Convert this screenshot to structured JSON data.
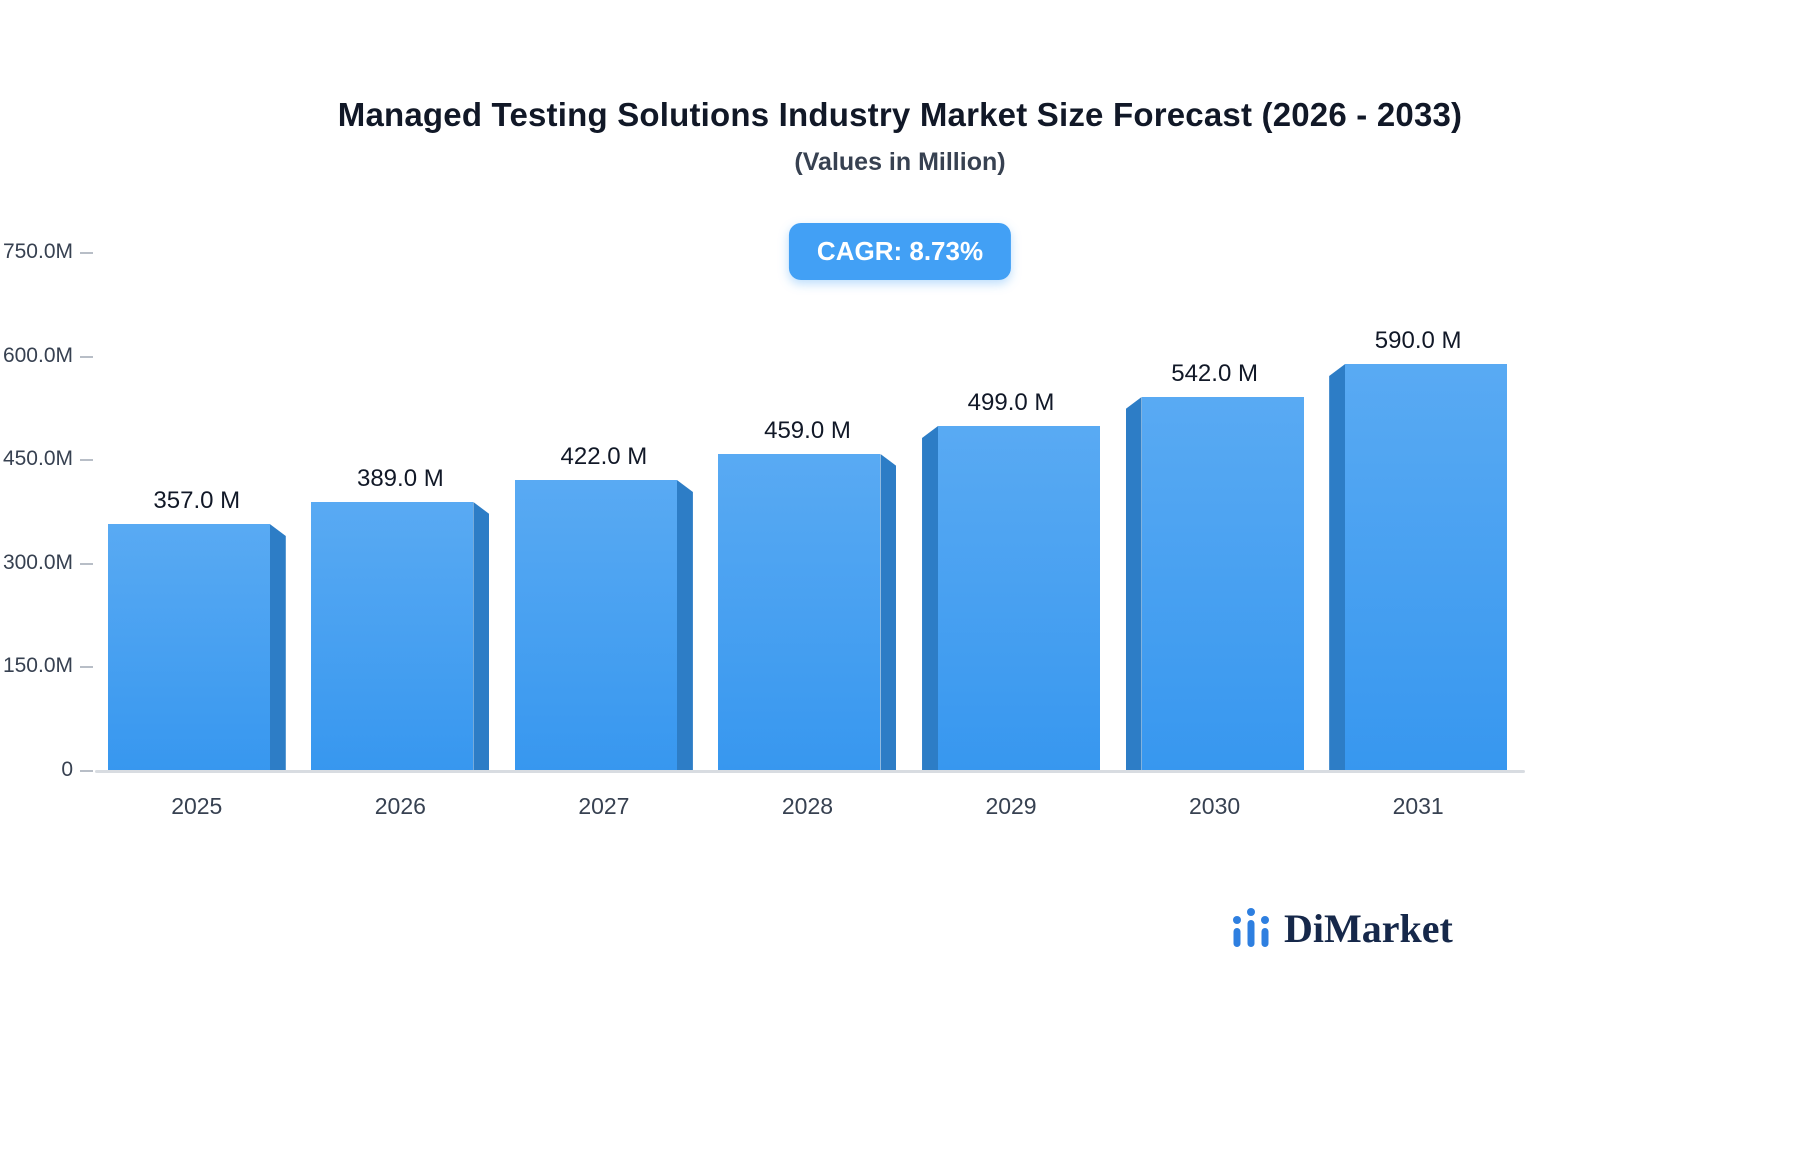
{
  "title": "Managed Testing Solutions Industry Market Size Forecast (2026 - 2033)",
  "subtitle": "(Values in Million)",
  "badge": {
    "label": "CAGR: 8.73%"
  },
  "logo": {
    "name": "DiMarket"
  },
  "chart_data": {
    "type": "bar",
    "title": "Managed Testing Solutions Industry Market Size Forecast (2026 - 2033)",
    "subtitle": "(Values in Million)",
    "categories": [
      "2025",
      "2026",
      "2027",
      "2028",
      "2029",
      "2030",
      "2031"
    ],
    "values": [
      357,
      389,
      422,
      459,
      499,
      542,
      590
    ],
    "bar_labels": [
      "357.0 M",
      "389.0 M",
      "422.0 M",
      "459.0 M",
      "499.0 M",
      "542.0 M",
      "590.0 M"
    ],
    "xlabel": "",
    "ylabel": "",
    "ylim": [
      0,
      750
    ],
    "yticks": [
      {
        "label": "750.0M",
        "value": 750
      },
      {
        "label": "600.0M",
        "value": 600
      },
      {
        "label": "450.0M",
        "value": 450
      },
      {
        "label": "300.0M",
        "value": 300
      },
      {
        "label": "150.0M",
        "value": 150
      },
      {
        "label": "0",
        "value": 0
      }
    ],
    "grid": false,
    "legend": null,
    "colors": {
      "bar_front_top": "#59aaf3",
      "bar_front_bottom": "#3797ef",
      "bar_side": "#2d7dc6",
      "badge": "#42a0f5",
      "logo_icon": "#2e7fe0",
      "logo_text": "#16284a"
    }
  }
}
